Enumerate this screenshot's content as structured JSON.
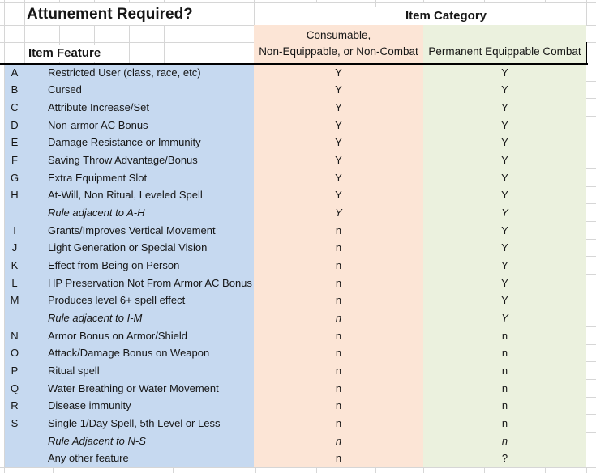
{
  "title": "Attunement Required?",
  "category_header": "Item Category",
  "feature_header": "Item Feature",
  "columns": {
    "consumable": {
      "line1": "Consumable,",
      "line2": "Non-Equippable, or Non-Combat"
    },
    "permanent": {
      "label": "Permanent Equippable Combat"
    }
  },
  "colors": {
    "feature_column_blue": "#c6d9f0",
    "consumable_column_peach": "#fce5d6",
    "permanent_column_green": "#ebf1de",
    "gridline_grey": "#d6d6d6",
    "divider_black": "#000000"
  },
  "rows": [
    {
      "letter": "A",
      "feature": "Restricted User (class, race, etc)",
      "consumable": "Y",
      "permanent": "Y",
      "italic": false
    },
    {
      "letter": "B",
      "feature": "Cursed",
      "consumable": "Y",
      "permanent": "Y",
      "italic": false
    },
    {
      "letter": "C",
      "feature": "Attribute Increase/Set",
      "consumable": "Y",
      "permanent": "Y",
      "italic": false
    },
    {
      "letter": "D",
      "feature": "Non-armor AC Bonus",
      "consumable": "Y",
      "permanent": "Y",
      "italic": false
    },
    {
      "letter": "E",
      "feature": "Damage Resistance or Immunity",
      "consumable": "Y",
      "permanent": "Y",
      "italic": false
    },
    {
      "letter": "F",
      "feature": "Saving Throw Advantage/Bonus",
      "consumable": "Y",
      "permanent": "Y",
      "italic": false
    },
    {
      "letter": "G",
      "feature": "Extra Equipment Slot",
      "consumable": "Y",
      "permanent": "Y",
      "italic": false
    },
    {
      "letter": "H",
      "feature": "At-Will, Non Ritual, Leveled Spell",
      "consumable": "Y",
      "permanent": "Y",
      "italic": false
    },
    {
      "letter": "",
      "feature": "Rule adjacent to A-H",
      "consumable": "Y",
      "permanent": "Y",
      "italic": true
    },
    {
      "letter": "I",
      "feature": "Grants/Improves Vertical Movement",
      "consumable": "n",
      "permanent": "Y",
      "italic": false
    },
    {
      "letter": "J",
      "feature": "Light Generation or Special Vision",
      "consumable": "n",
      "permanent": "Y",
      "italic": false
    },
    {
      "letter": "K",
      "feature": "Effect from Being on Person",
      "consumable": "n",
      "permanent": "Y",
      "italic": false
    },
    {
      "letter": "L",
      "feature": "HP Preservation Not From Armor AC Bonus",
      "consumable": "n",
      "permanent": "Y",
      "italic": false
    },
    {
      "letter": "M",
      "feature": "Produces level 6+ spell effect",
      "consumable": "n",
      "permanent": "Y",
      "italic": false
    },
    {
      "letter": "",
      "feature": "Rule adjacent to I-M",
      "consumable": "n",
      "permanent": "Y",
      "italic": true
    },
    {
      "letter": "N",
      "feature": "Armor Bonus on Armor/Shield",
      "consumable": "n",
      "permanent": "n",
      "italic": false
    },
    {
      "letter": "O",
      "feature": "Attack/Damage Bonus on Weapon",
      "consumable": "n",
      "permanent": "n",
      "italic": false
    },
    {
      "letter": "P",
      "feature": "Ritual spell",
      "consumable": "n",
      "permanent": "n",
      "italic": false
    },
    {
      "letter": "Q",
      "feature": "Water Breathing or Water Movement",
      "consumable": "n",
      "permanent": "n",
      "italic": false
    },
    {
      "letter": "R",
      "feature": "Disease immunity",
      "consumable": "n",
      "permanent": "n",
      "italic": false
    },
    {
      "letter": "S",
      "feature": "Single 1/Day Spell, 5th Level or Less",
      "consumable": "n",
      "permanent": "n",
      "italic": false
    },
    {
      "letter": "",
      "feature": "Rule Adjacent to N-S",
      "consumable": "n",
      "permanent": "n",
      "italic": true
    },
    {
      "letter": "",
      "feature": "Any other feature",
      "consumable": "n",
      "permanent": "?",
      "italic": false
    }
  ]
}
